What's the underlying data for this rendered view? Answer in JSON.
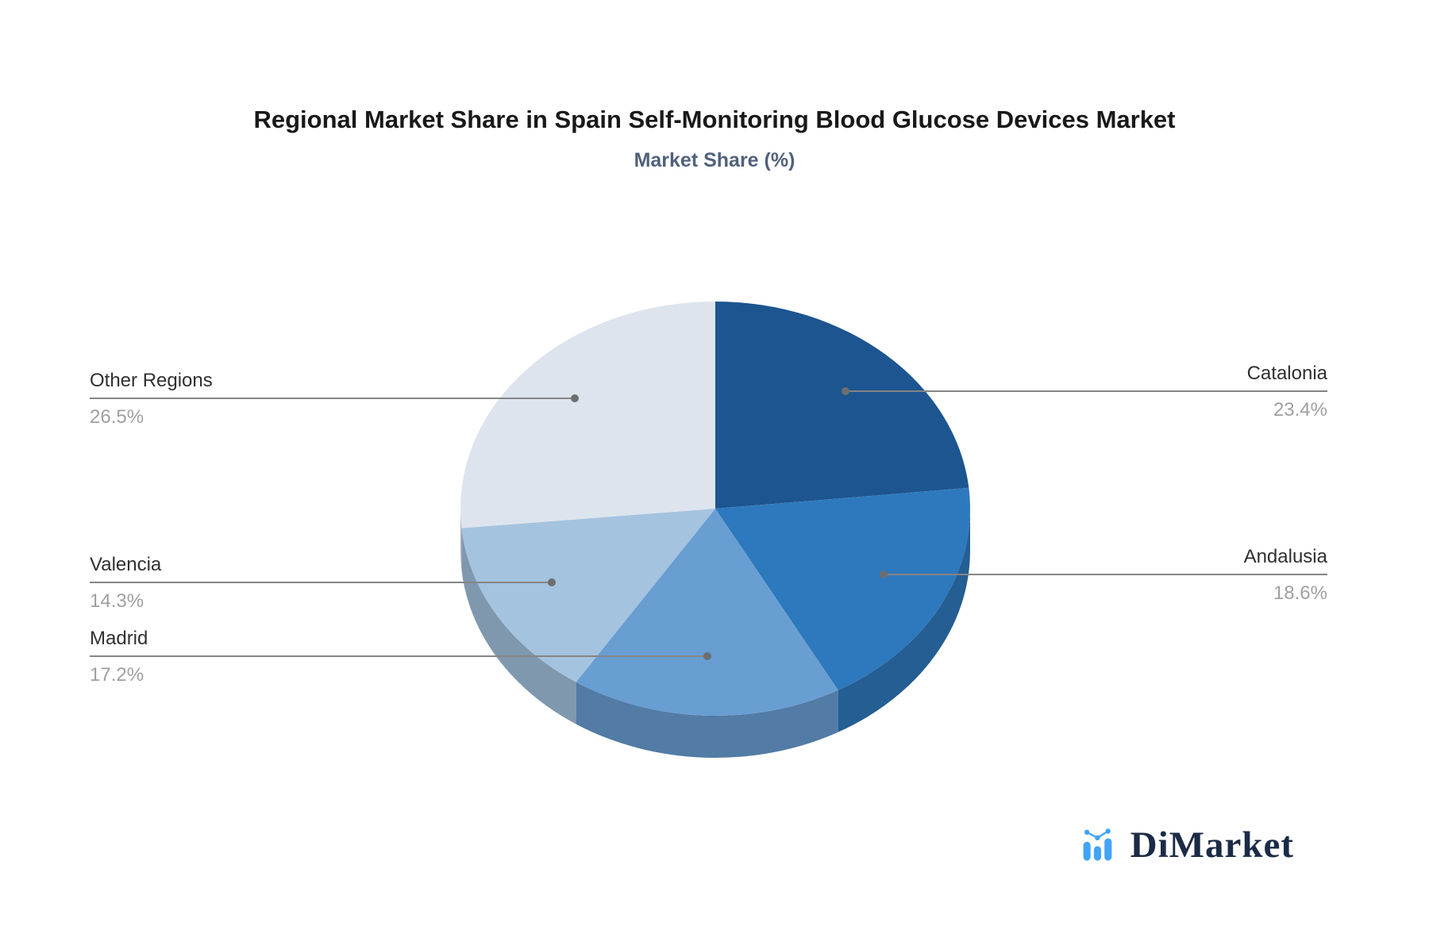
{
  "header": {
    "title": "Regional Market Share in Spain Self-Monitoring Blood Glucose Devices Market",
    "subtitle": "Market Share (%)"
  },
  "chart_data": {
    "type": "pie",
    "style": "3d",
    "title": "Regional Market Share in Spain Self-Monitoring Blood Glucose Devices Market",
    "subtitle": "Market Share (%)",
    "categories": [
      "Catalonia",
      "Andalusia",
      "Madrid",
      "Valencia",
      "Other Regions"
    ],
    "values": [
      23.4,
      18.6,
      17.2,
      14.3,
      26.5
    ],
    "value_labels": [
      "23.4%",
      "18.6%",
      "17.2%",
      "14.3%",
      "26.5%"
    ],
    "colors": [
      "#1c5590",
      "#2e79bd",
      "#699ed3",
      "#a4c3df",
      "#dde4ee"
    ],
    "start_angle": "top",
    "direction": "clockwise",
    "labels_position": "outside-leader-lines",
    "legend": "none",
    "leader_line_color": "#858585",
    "dot_color": "#6e6e6e",
    "category_label_color": "#303030",
    "value_label_color": "#9f9f9f"
  },
  "logo": {
    "text": "DiMarket",
    "icon": "bar-chart-trend-icon",
    "bar_color": "#42a4f6",
    "text_color": "#1c2b45"
  }
}
